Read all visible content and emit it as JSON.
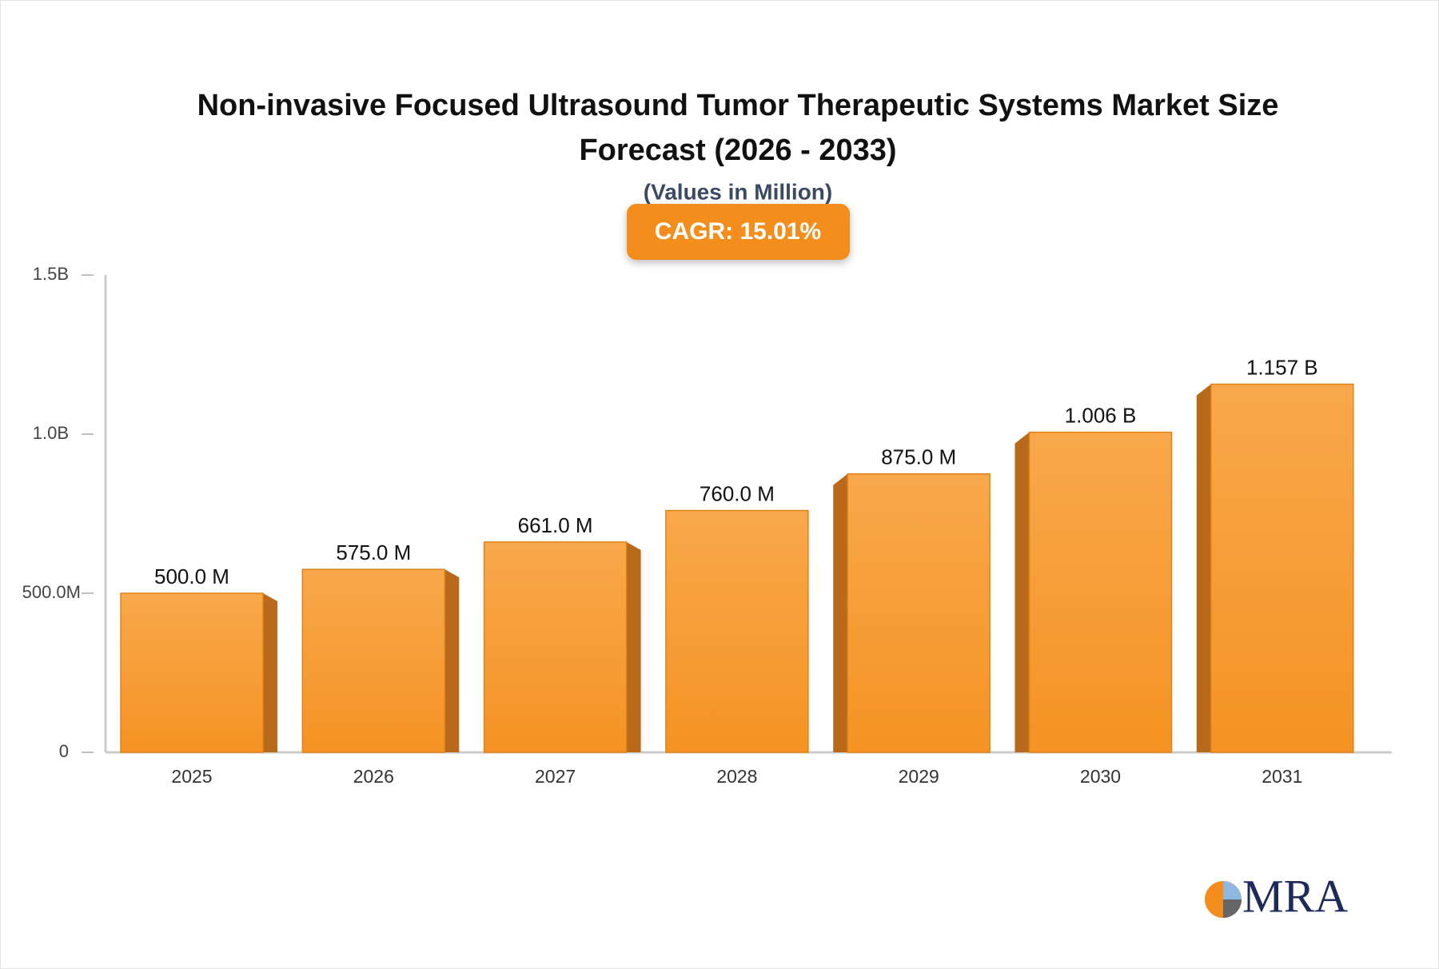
{
  "chart_data": {
    "type": "bar",
    "title": [
      "Non-invasive Focused Ultrasound Tumor Therapeutic Systems Market Size",
      "Forecast (2026 - 2033)"
    ],
    "subtitle": "(Values in Million)",
    "annotation": "CAGR: 15.01%",
    "categories": [
      "2025",
      "2026",
      "2027",
      "2028",
      "2029",
      "2030",
      "2031"
    ],
    "values": [
      500000000,
      575000000,
      661000000,
      760000000,
      875000000,
      1006000000,
      1157000000
    ],
    "value_labels": [
      "500.0 M",
      "575.0 M",
      "661.0 M",
      "760.0 M",
      "875.0 M",
      "1.006 B",
      "1.157 B"
    ],
    "color": "#f7a13f",
    "ylim": [
      0,
      1500000000
    ],
    "yticks": [
      0,
      {
        "value": 500000000,
        "label": "500.0M"
      },
      {
        "value": 1000000000,
        "label": "1.0B"
      },
      {
        "value": 1500000000,
        "label": "1.5B"
      }
    ],
    "logo": "MRA"
  }
}
